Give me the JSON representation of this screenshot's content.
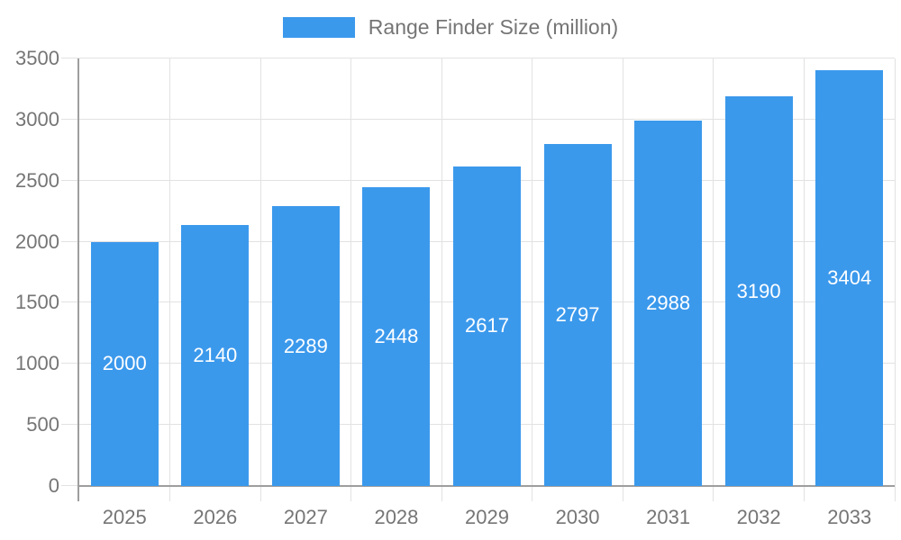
{
  "legend": {
    "label": "Range Finder Size (million)"
  },
  "chart_data": {
    "type": "bar",
    "title": "",
    "series_name": "Range Finder Size (million)",
    "categories": [
      "2025",
      "2026",
      "2027",
      "2028",
      "2029",
      "2030",
      "2031",
      "2032",
      "2033"
    ],
    "values": [
      2000,
      2140,
      2289,
      2448,
      2617,
      2797,
      2988,
      3190,
      3404
    ],
    "xlabel": "",
    "ylabel": "",
    "ylim": [
      0,
      3500
    ],
    "yticks": [
      0,
      500,
      1000,
      1500,
      2000,
      2500,
      3000,
      3500
    ],
    "grid": true,
    "legend_position": "top-center",
    "value_labels_position": "center-inside",
    "colors": {
      "bar": "#3b99ec",
      "value_label": "#ffffff",
      "axis": "#9e9e9e",
      "grid": "#e2e2e2",
      "text": "#757575",
      "background": "#ffffff"
    }
  }
}
